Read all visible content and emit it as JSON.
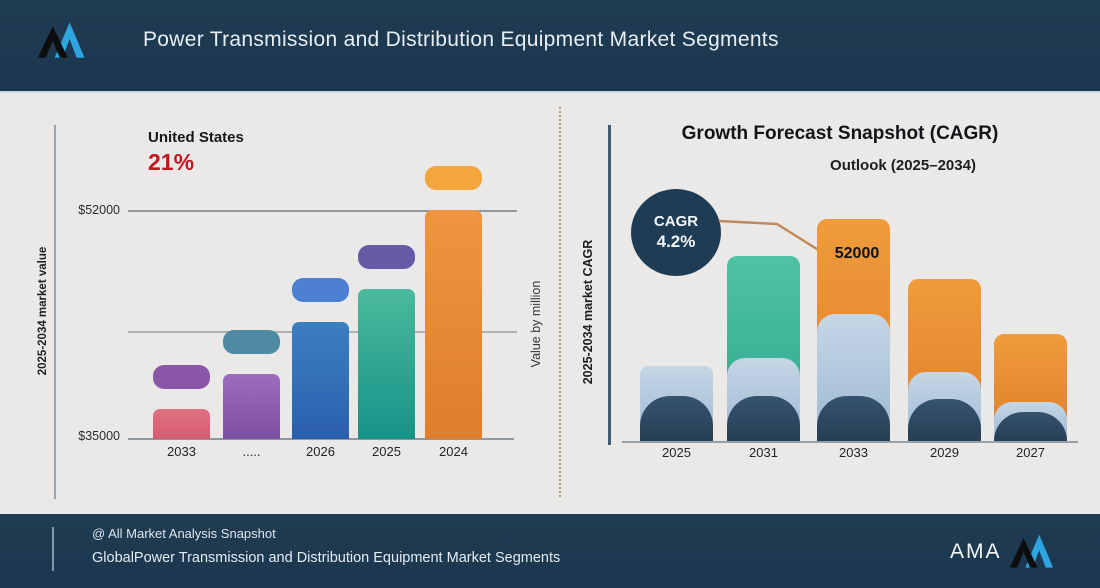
{
  "header": {
    "title": "Power Transmission and Distribution Equipment Market Segments"
  },
  "left_panel": {
    "region_label": "United States",
    "highlight_value": "21%"
  },
  "middle_axes": {
    "value_axis_label": "Value by million",
    "cagr_axis_label": "2025-2034 market CAGR"
  },
  "right_panel": {
    "title": "Growth Forecast Snapshot (CAGR)",
    "subtitle": "Outlook (2025–2034)",
    "badge_title": "CAGR",
    "badge_value": "4.2%",
    "callout_value": "52000"
  },
  "footer": {
    "line1": "@ All Market Analysis Snapshot",
    "line2": "GlobalPower Transmission and Distribution Equipment Market Segments",
    "logo_text": "AMA"
  },
  "colors": {
    "header_bg": "#1d3a4f",
    "content_bg": "#eae9e8",
    "accent_red": "#c0141e",
    "badge_navy": "#1e3d54",
    "connector_line": "#c08a5a",
    "divider_dots": "#ab8f6e",
    "gridline": "#8f98a0",
    "right_axis_line": "#3c5a73",
    "logo_black": "#0d0d0f",
    "logo_blue": "#2ea5e0"
  },
  "chart_data": [
    {
      "id": "us-market-value",
      "type": "bar",
      "title": "United States",
      "annotation": "21%",
      "ylabel": "2025-2034 market value",
      "categories": [
        "2033",
        ".....",
        "2026",
        "2025",
        "2024"
      ],
      "values": [
        37200,
        39800,
        43700,
        46100,
        52000
      ],
      "ylim": [
        35000,
        52000
      ],
      "ytick_labels": [
        "$52000",
        "$35000"
      ],
      "grid": "horizontal gridlines at $52000 and one unlabeled mid level",
      "legend": "none",
      "bar_gradients": [
        [
          "#e07183",
          "#d55b70"
        ],
        [
          "#9d6cbd",
          "#7d4fa1"
        ],
        [
          "#3b7ec2",
          "#2b60ac"
        ],
        [
          "#4bb99c",
          "#169388"
        ],
        [
          "#ee9540",
          "#de7e2d"
        ]
      ],
      "cap_colors": [
        "#8956a8",
        "#4e8ba2",
        "#4d80d2",
        "#665aa6",
        "#f3a53e"
      ]
    },
    {
      "id": "cagr-outlook",
      "type": "bar",
      "stacked": true,
      "title": "Growth Forecast Snapshot (CAGR)",
      "subtitle": "Outlook (2025–2034)",
      "cagr_value": "4.2%",
      "ylabel": "2025-2034 market CAGR",
      "categories": [
        "2025",
        "2031",
        "2033",
        "2029",
        "2027"
      ],
      "series": [
        {
          "name": "base",
          "values": [
            10500,
            10500,
            10500,
            9800,
            6800
          ]
        },
        {
          "name": "mid",
          "values": [
            7000,
            8900,
            19200,
            6300,
            2300
          ]
        },
        {
          "name": "top",
          "values": [
            0,
            23900,
            22300,
            21800,
            15900
          ]
        }
      ],
      "totals_estimated": [
        17500,
        43300,
        52000,
        37900,
        25000
      ],
      "labeled_point": {
        "category": "2033",
        "total_label": "52000"
      },
      "ylim": [
        0,
        52000
      ],
      "legend": "none",
      "segment_gradients": {
        "base": [
          "#36546e",
          "#263e54"
        ],
        "mid": [
          "#c6d6e5",
          "#9cb9d3"
        ],
        "teal": [
          "#4fc2a3",
          "#2da88e"
        ],
        "orange": [
          "#f09b3c",
          "#df7e29"
        ]
      },
      "top_segment_kind": [
        "none",
        "teal",
        "orange",
        "orange",
        "orange"
      ]
    }
  ]
}
